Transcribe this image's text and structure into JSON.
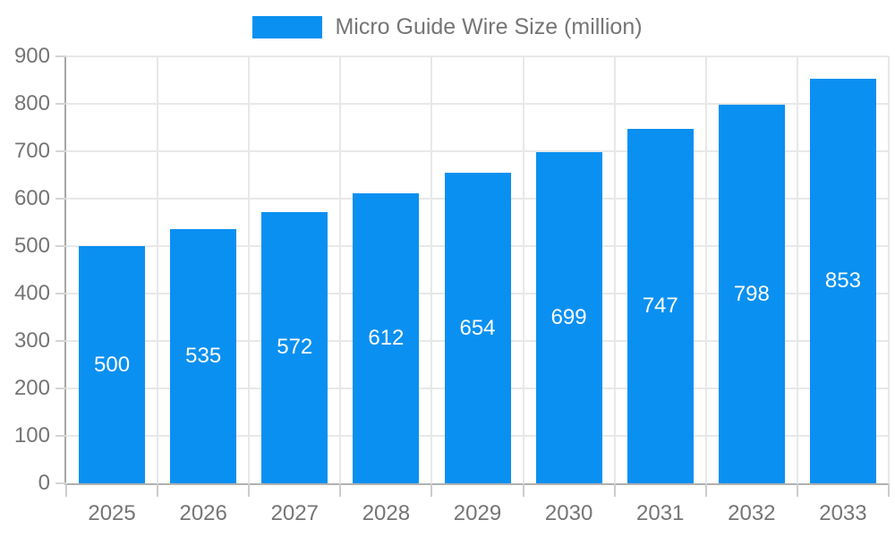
{
  "legend": {
    "label": "Micro Guide Wire Size (million)"
  },
  "chart_data": {
    "type": "bar",
    "title": "Micro Guide Wire Size (million)",
    "categories": [
      "2025",
      "2026",
      "2027",
      "2028",
      "2029",
      "2030",
      "2031",
      "2032",
      "2033"
    ],
    "values": [
      500,
      535,
      572,
      612,
      654,
      699,
      747,
      798,
      853
    ],
    "series": [
      {
        "name": "Micro Guide Wire Size (million)",
        "values": [
          500,
          535,
          572,
          612,
          654,
          699,
          747,
          798,
          853
        ]
      }
    ],
    "xlabel": "",
    "ylabel": "",
    "ylim": [
      0,
      900
    ],
    "ytick_interval": 100,
    "yticks": [
      0,
      100,
      200,
      300,
      400,
      500,
      600,
      700,
      800,
      900
    ],
    "grid": true,
    "legend_position": "top",
    "value_labels_shown": true,
    "value_label_position": "middle-of-bar",
    "colors": {
      "bar": "#0a90f1",
      "value_label": "#ffffff",
      "axis_text": "#757575",
      "gridline": "#e8e8e8",
      "axis_line": "#a6a6a6"
    }
  }
}
